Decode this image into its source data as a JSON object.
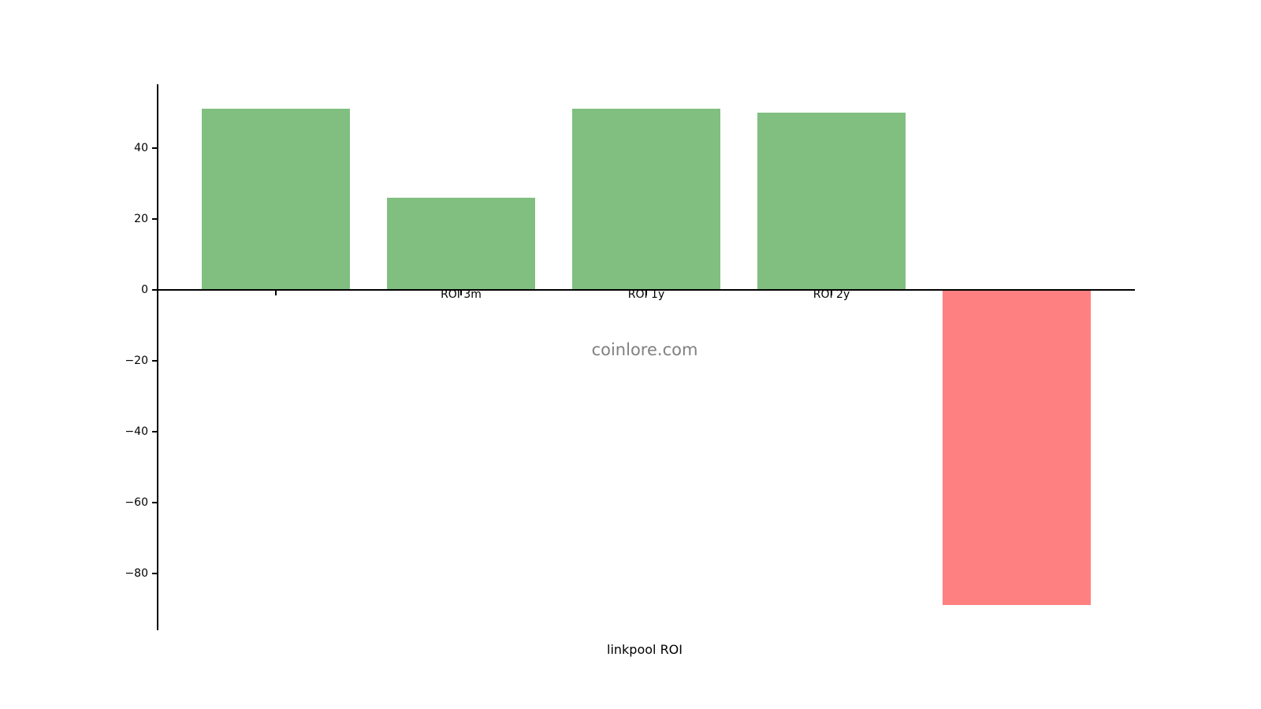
{
  "watermark": {
    "text": "coinlore.com",
    "color": "#808080"
  },
  "chart_data": {
    "type": "bar",
    "title": "",
    "xlabel": "linkpool ROI",
    "ylabel": "",
    "categories": [
      "",
      "ROI 3m",
      "ROI 1y",
      "ROI 2y",
      ""
    ],
    "values": [
      51,
      26,
      51,
      50,
      -89
    ],
    "bar_colors": [
      "#80bf80",
      "#80bf80",
      "#80bf80",
      "#80bf80",
      "#ff8080"
    ],
    "positive_color": "#80bf80",
    "negative_color": "#ff8080",
    "y_ticks": [
      40,
      20,
      0,
      -20,
      -40,
      -60,
      -80
    ],
    "y_tick_labels": [
      "40",
      "20",
      "0",
      "−20",
      "−40",
      "−60",
      "−80"
    ],
    "ylim": [
      -96,
      58
    ],
    "grid": false,
    "legend": "none",
    "axis_color": "#000000",
    "background": "#ffffff"
  }
}
